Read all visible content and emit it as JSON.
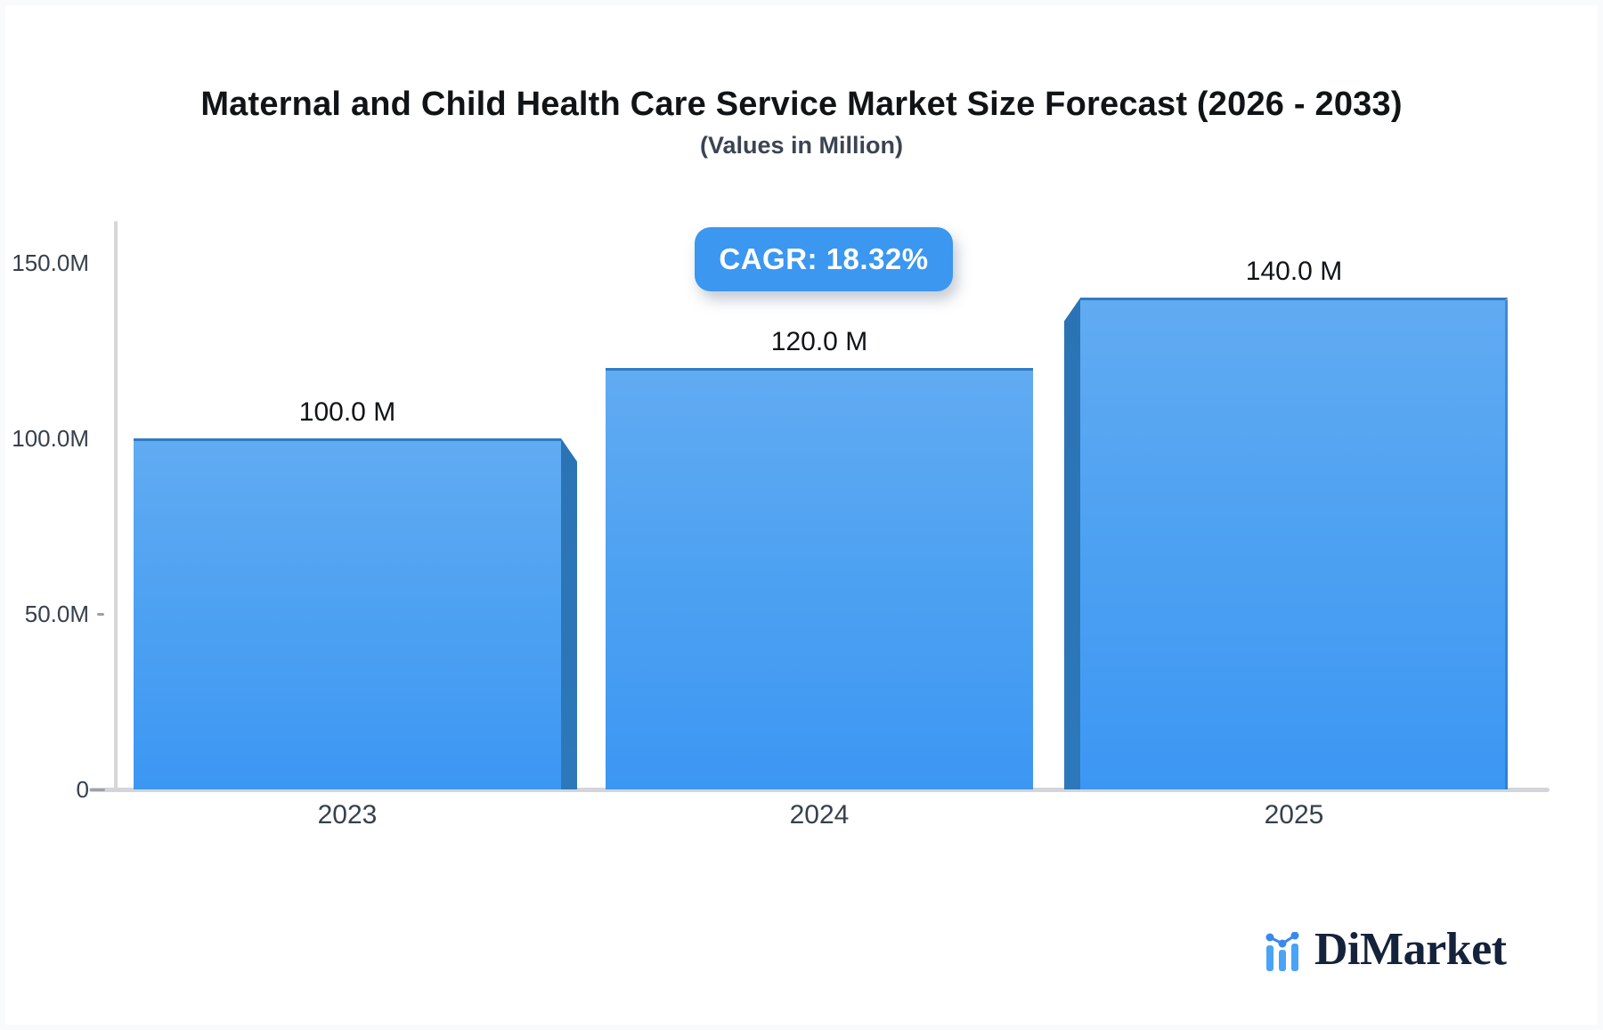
{
  "title": "Maternal and Child Health Care Service Market Size Forecast (2026 - 2033)",
  "subtitle": "(Values in Million)",
  "cagr_badge": "CAGR: 18.32%",
  "brand": {
    "name": "DiMarket"
  },
  "colors": {
    "accent_blue": "#3b97f0",
    "bar_top": "#61abf2",
    "bar_bottom": "#3c97f3",
    "bar_side": "#2b73b4",
    "axis_gray": "#d5d7db",
    "text_dark": "#111417",
    "text_slate": "#36404e",
    "logo_navy": "#15223c"
  },
  "chart_data": {
    "type": "bar",
    "title": "Maternal and Child Health Care Service Market Size Forecast (2026 - 2033)",
    "subtitle": "(Values in Million)",
    "categories": [
      "2023",
      "2024",
      "2025"
    ],
    "values": [
      100.0,
      120.0,
      140.0
    ],
    "value_labels": [
      "100.0 M",
      "120.0 M",
      "140.0 M"
    ],
    "unit": "Million",
    "ylim": [
      0,
      150
    ],
    "yticks": [
      {
        "label": "150.0M",
        "value": 150,
        "dash": "none"
      },
      {
        "label": "100.0M",
        "value": 100,
        "dash": "none"
      },
      {
        "label": "50.0M",
        "value": 50,
        "dash": "short"
      },
      {
        "label": "0",
        "value": 0,
        "dash": "long"
      }
    ],
    "grid": false,
    "legend": false,
    "annotation": "CAGR: 18.32%"
  }
}
